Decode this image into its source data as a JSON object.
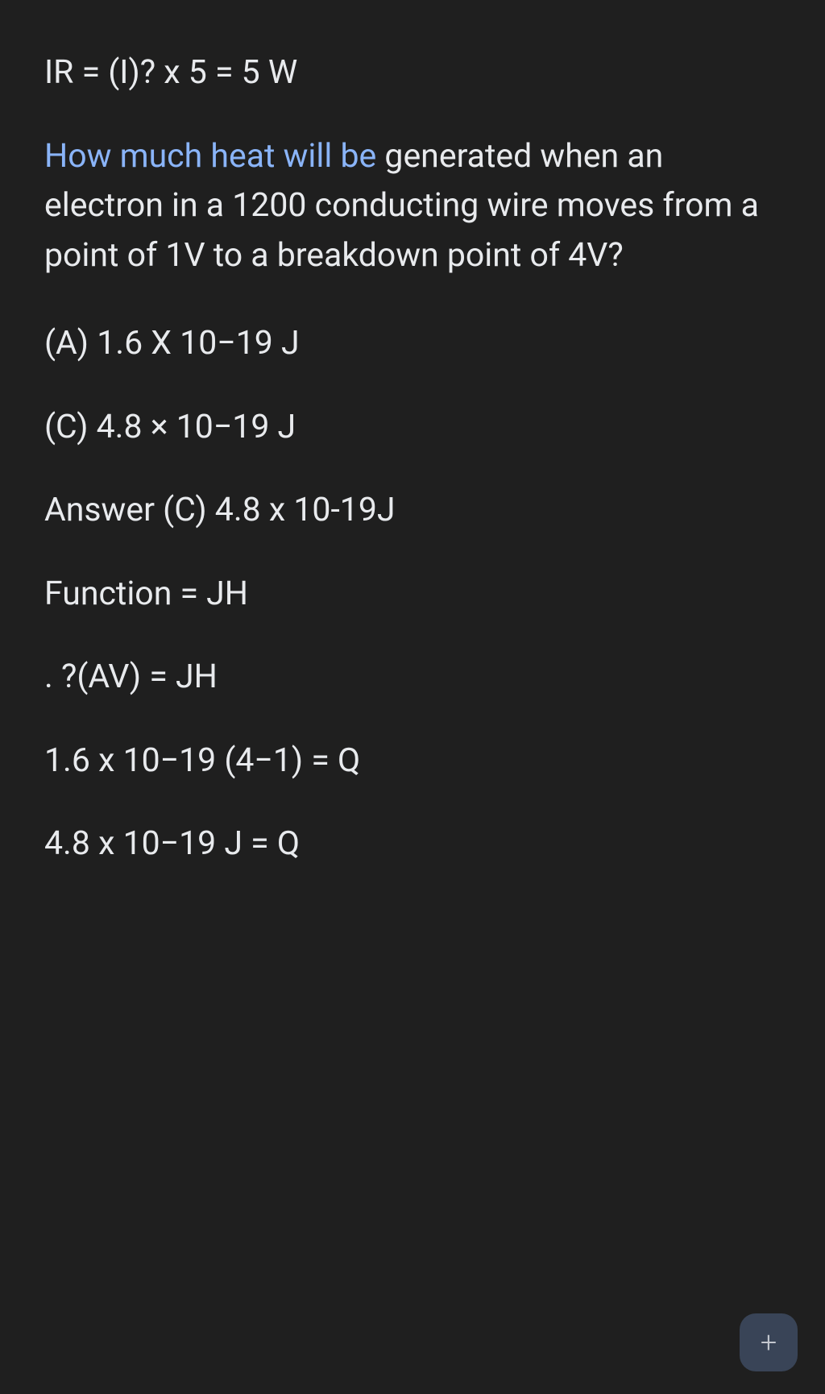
{
  "line1": "IR = (I)?  x 5 = 5 W",
  "question": {
    "link_prefix": " How much heat will be",
    "rest": " generated when an electron in a 1200 conducting wire moves from a point of 1V to a breakdown point of 4V?"
  },
  "optionA": "(A) 1.6 X 10−19 J",
  "optionC": "(C) 4.8 × 10−19 J",
  "answer": "Answer (C) 4.8 x 10-19J",
  "function": "Function = JH",
  "eq1": ".  ?(AV) = JH",
  "eq2": "1.6 x 10−19 (4−1) = Q",
  "eq3": "4.8 x 10−19 J = Q",
  "fab_label": "+",
  "colors": {
    "background": "#1f1f1f",
    "text": "#e8eaed",
    "link": "#8ab4f8",
    "fab_bg": "#394457",
    "fab_fg": "#c3c7cf"
  }
}
